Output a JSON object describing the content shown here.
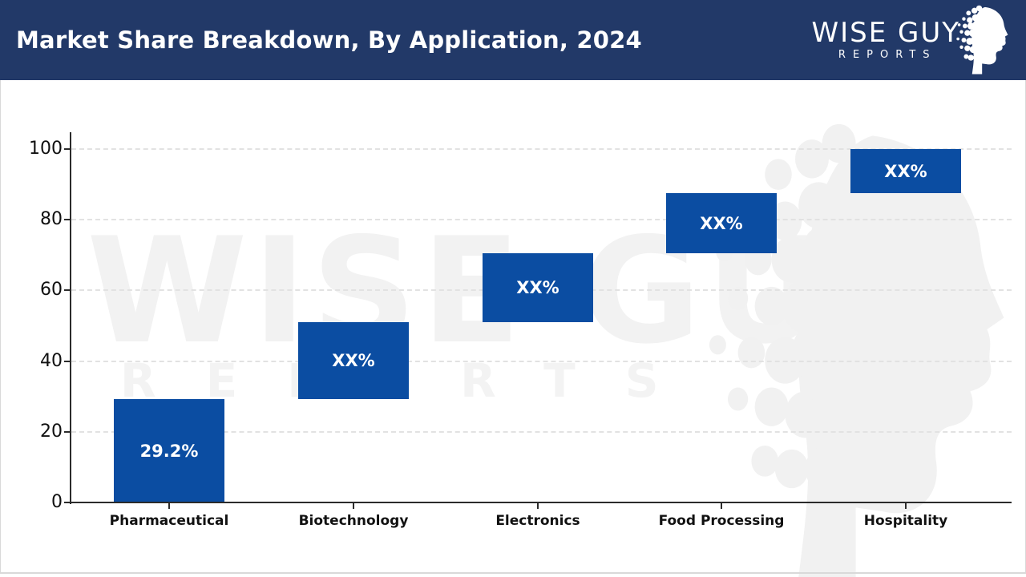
{
  "header": {
    "title": "Market Share Breakdown, By Application, 2024",
    "logo": {
      "line1": "WISE GUY",
      "line2": "REPORTS"
    }
  },
  "watermark": {
    "line1": "WISE GUY",
    "line2": "REPORTS"
  },
  "chart_data": {
    "type": "bar",
    "subtype": "waterfall",
    "title": "Market Share Breakdown, By Application, 2024",
    "categories": [
      "Pharmaceutical",
      "Biotechnology",
      "Electronics",
      "Food Processing",
      "Hospitality"
    ],
    "segments": [
      {
        "category": "Pharmaceutical",
        "start": 0,
        "end": 29.2,
        "value": 29.2,
        "label": "29.2%"
      },
      {
        "category": "Biotechnology",
        "start": 29.2,
        "end": 51,
        "value": 21.8,
        "label": "XX%"
      },
      {
        "category": "Electronics",
        "start": 51,
        "end": 70.5,
        "value": 19.5,
        "label": "XX%"
      },
      {
        "category": "Food Processing",
        "start": 70.5,
        "end": 87.5,
        "value": 17,
        "label": "XX%"
      },
      {
        "category": "Hospitality",
        "start": 87.5,
        "end": 100,
        "value": 12.5,
        "label": "XX%"
      }
    ],
    "ylim": [
      0,
      100
    ],
    "yticks": [
      0,
      20,
      40,
      60,
      80,
      100
    ],
    "xlabel": "",
    "ylabel": "",
    "grid": "horizontal-dashed",
    "legend": "none",
    "bar_color": "#0b4da2",
    "label_color": "#ffffff",
    "header_color": "#223968"
  }
}
